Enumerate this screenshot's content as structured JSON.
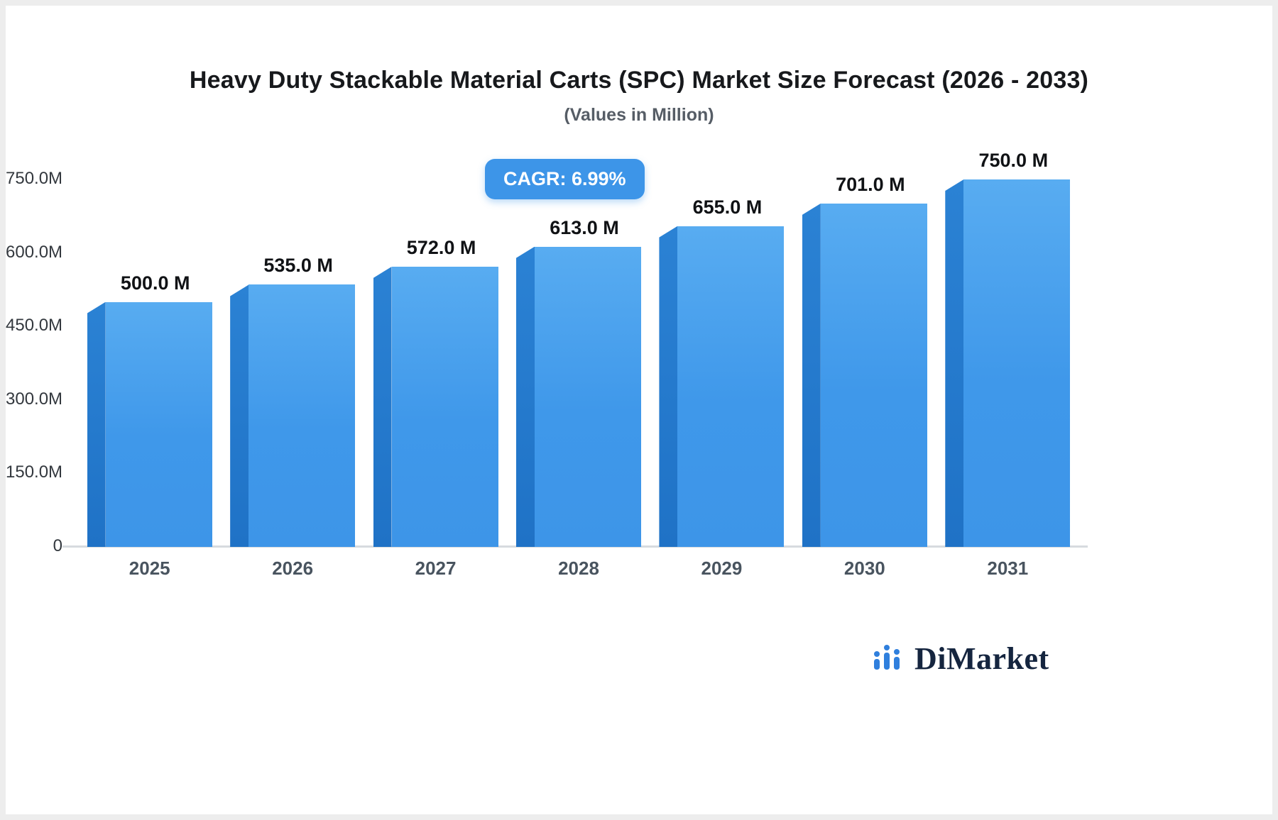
{
  "header": {
    "title": "Heavy Duty Stackable Material Carts (SPC) Market Size Forecast (2026 - 2033)",
    "subtitle": "(Values in Million)"
  },
  "cagr_badge": {
    "label": "CAGR: 6.99%"
  },
  "logo": {
    "text": "DiMarket"
  },
  "chart_data": {
    "type": "bar",
    "title": "Heavy Duty Stackable Material Carts (SPC) Market Size Forecast (2026 - 2033)",
    "subtitle": "(Values in Million)",
    "categories": [
      "2025",
      "2026",
      "2027",
      "2028",
      "2029",
      "2030",
      "2031"
    ],
    "values": [
      500.0,
      535.0,
      572.0,
      613.0,
      655.0,
      701.0,
      750.0
    ],
    "value_labels": [
      "500.0 M",
      "535.0 M",
      "572.0 M",
      "613.0 M",
      "655.0 M",
      "701.0 M",
      "750.0 M"
    ],
    "xlabel": "",
    "ylabel": "",
    "ylim": [
      0,
      750
    ],
    "y_ticks": [
      {
        "value": 750,
        "label": "750.0M"
      },
      {
        "value": 600,
        "label": "600.0M"
      },
      {
        "value": 450,
        "label": "450.0M"
      },
      {
        "value": 300,
        "label": "300.0M"
      },
      {
        "value": 150,
        "label": "150.0M"
      },
      {
        "value": 0,
        "label": "0"
      }
    ],
    "grid": false,
    "legend": false,
    "bar_color": "#3d95e8",
    "bar_edge_color": "#1f72c6",
    "badge_color": "#3d95e8"
  }
}
